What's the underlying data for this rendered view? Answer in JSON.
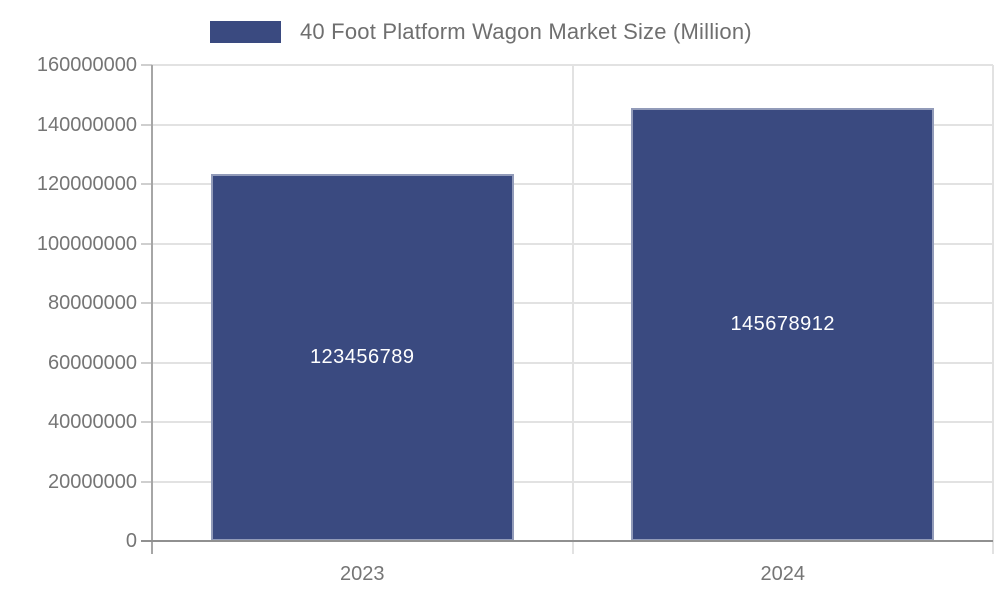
{
  "legend": {
    "items": [
      {
        "label": "40 Foot Platform Wagon Market Size (Million)",
        "swatch_color": "#3a4a80"
      }
    ]
  },
  "chart_data": {
    "type": "bar",
    "title": "40 Foot Platform Wagon Market Size (Million)",
    "categories": [
      "2023",
      "2024"
    ],
    "values": [
      123456789,
      145678912
    ],
    "bar_labels": [
      "123456789",
      "145678912"
    ],
    "xlabel": "",
    "ylabel": "",
    "ylim": [
      0,
      160000000
    ],
    "yticks": [
      0,
      20000000,
      40000000,
      60000000,
      80000000,
      100000000,
      120000000,
      140000000,
      160000000
    ],
    "grid": true,
    "legend_position": "top",
    "bar_color": "#3a4a80",
    "bar_label_color": "#ffffff"
  },
  "colors": {
    "background": "#ffffff",
    "grid_line": "#e2e2e2",
    "axis_line": "#a6a6a6",
    "baseline": "#909090",
    "tick_mark": "#cfcfcf",
    "tick_label": "#757575",
    "legend_text": "#6f6f6f"
  }
}
